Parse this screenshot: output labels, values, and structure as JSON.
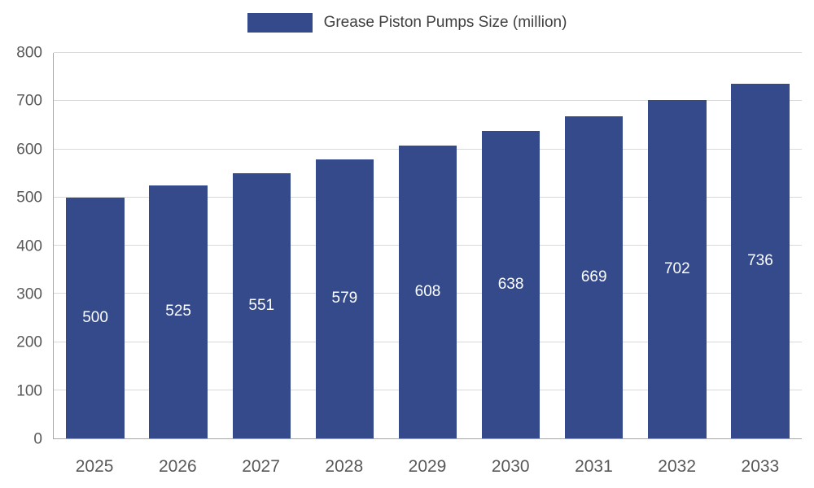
{
  "chart_data": {
    "type": "bar",
    "title": "Grease Piston Pumps Size (million)",
    "categories": [
      "2025",
      "2026",
      "2027",
      "2028",
      "2029",
      "2030",
      "2031",
      "2032",
      "2033"
    ],
    "values": [
      500,
      525,
      551,
      579,
      608,
      638,
      669,
      702,
      736
    ],
    "xlabel": "",
    "ylabel": "",
    "ylim": [
      0,
      800
    ],
    "ytick_step": 100,
    "grid": true,
    "legend_position": "top",
    "colors": {
      "bar": "#344a8a",
      "value_label": "#ffffff",
      "axis_text": "#595959",
      "gridline": "#d9d9d9",
      "axis_line": "#a6a6a6"
    }
  }
}
